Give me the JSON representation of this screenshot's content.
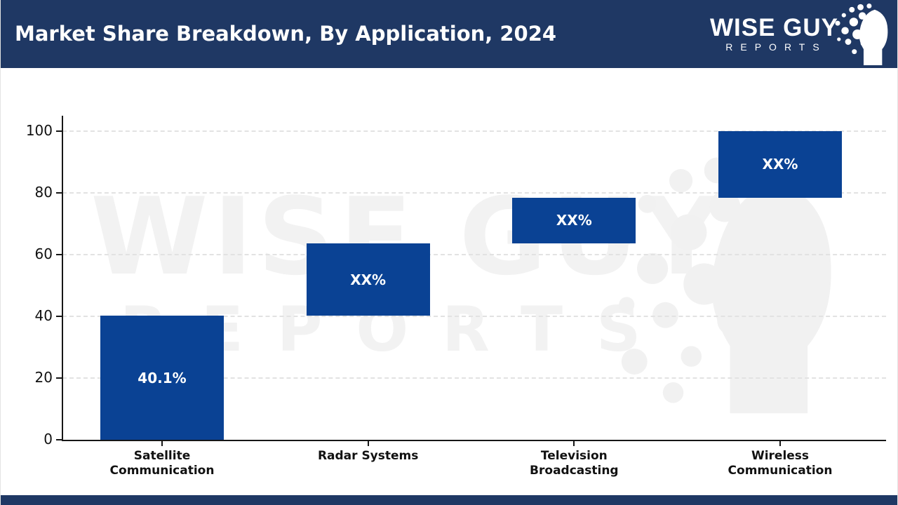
{
  "header": {
    "title": "Market Share Breakdown, By Application, 2024",
    "logo": {
      "name": "WISE GUY",
      "sub": "REPORTS"
    }
  },
  "watermark": {
    "line1": "WISE GUY",
    "line2": "REPORTS"
  },
  "chart_data": {
    "type": "bar",
    "subtype": "waterfall",
    "title": "Market Share Breakdown, By Application, 2024",
    "xlabel": "",
    "ylabel": "",
    "ylim": [
      0,
      105
    ],
    "yticks": [
      0,
      20,
      40,
      60,
      80,
      100
    ],
    "grid": "horizontal-dashed",
    "legend": "none",
    "bar_color": "#0a4294",
    "categories": [
      {
        "label": "Satellite Communication",
        "lines": [
          "Satellite",
          "Communication"
        ]
      },
      {
        "label": "Radar Systems",
        "lines": [
          "Radar Systems"
        ]
      },
      {
        "label": "Television Broadcasting",
        "lines": [
          "Television",
          "Broadcasting"
        ]
      },
      {
        "label": "Wireless Communication",
        "lines": [
          "Wireless",
          "Communication"
        ]
      }
    ],
    "segments": [
      {
        "category": "Satellite Communication",
        "start": 0,
        "end": 40.1,
        "label": "40.1%"
      },
      {
        "category": "Radar Systems",
        "start": 40.1,
        "end": 63.6,
        "label": "XX%"
      },
      {
        "category": "Television Broadcasting",
        "start": 63.6,
        "end": 78.3,
        "label": "XX%"
      },
      {
        "category": "Wireless Communication",
        "start": 78.3,
        "end": 100,
        "label": "XX%"
      }
    ]
  },
  "colors": {
    "header_navy": "#1f3864",
    "footer_navy": "#1f3864",
    "bar_blue": "#0a4294",
    "gridline": "#e2e2e2",
    "axis": "#161616",
    "watermark": "#f2f2f2",
    "bar_label": "#ffffff"
  }
}
